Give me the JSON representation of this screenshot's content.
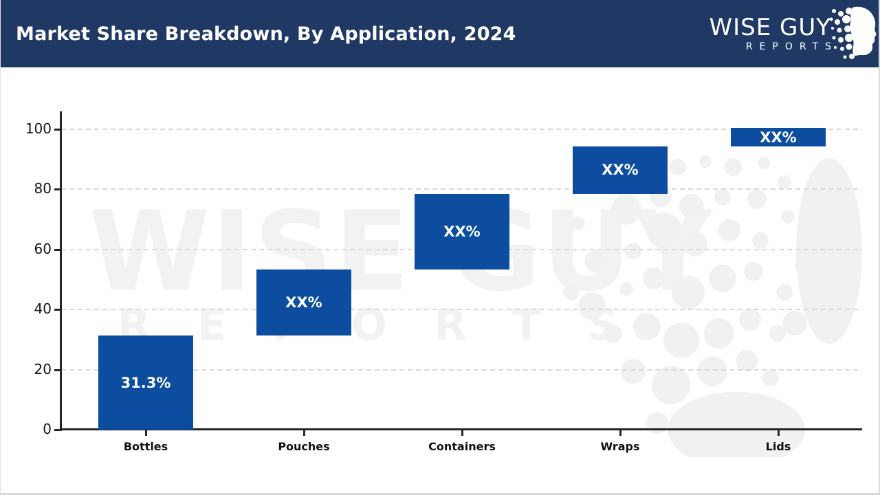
{
  "header": {
    "title": "Market Share Breakdown, By Application, 2024",
    "logo": {
      "line1": "WISE GUY",
      "line2": "REPORTS"
    }
  },
  "watermark": {
    "line1": "WISE GUY",
    "line2": "REPORTS"
  },
  "colors": {
    "header_bg": "#1f3864",
    "bar": "#0c4da0",
    "bar_label": "#ffffff",
    "axis": "#262626",
    "grid": "#d9d9d9",
    "watermark": "#f2f2f2"
  },
  "chart_data": {
    "type": "waterfall",
    "title": "Market Share Breakdown, By Application, 2024",
    "categories": [
      "Bottles",
      "Pouches",
      "Containers",
      "Wraps",
      "Lids"
    ],
    "segments": [
      {
        "category": "Bottles",
        "start": 0,
        "end": 31.3,
        "label": "31.3%"
      },
      {
        "category": "Pouches",
        "start": 31.3,
        "end": 53.3,
        "label": "XX%"
      },
      {
        "category": "Containers",
        "start": 53.3,
        "end": 78.4,
        "label": "XX%"
      },
      {
        "category": "Wraps",
        "start": 78.4,
        "end": 94.2,
        "label": "XX%"
      },
      {
        "category": "Lids",
        "start": 94.2,
        "end": 100.3,
        "label": "XX%"
      }
    ],
    "xlabel": "",
    "ylabel": "",
    "yticks": [
      0,
      20,
      40,
      60,
      80,
      100
    ],
    "ylim": [
      0,
      105.8
    ],
    "grid": "horizontal-dashed",
    "legend": "none",
    "bar_color": "#0c4da0"
  }
}
